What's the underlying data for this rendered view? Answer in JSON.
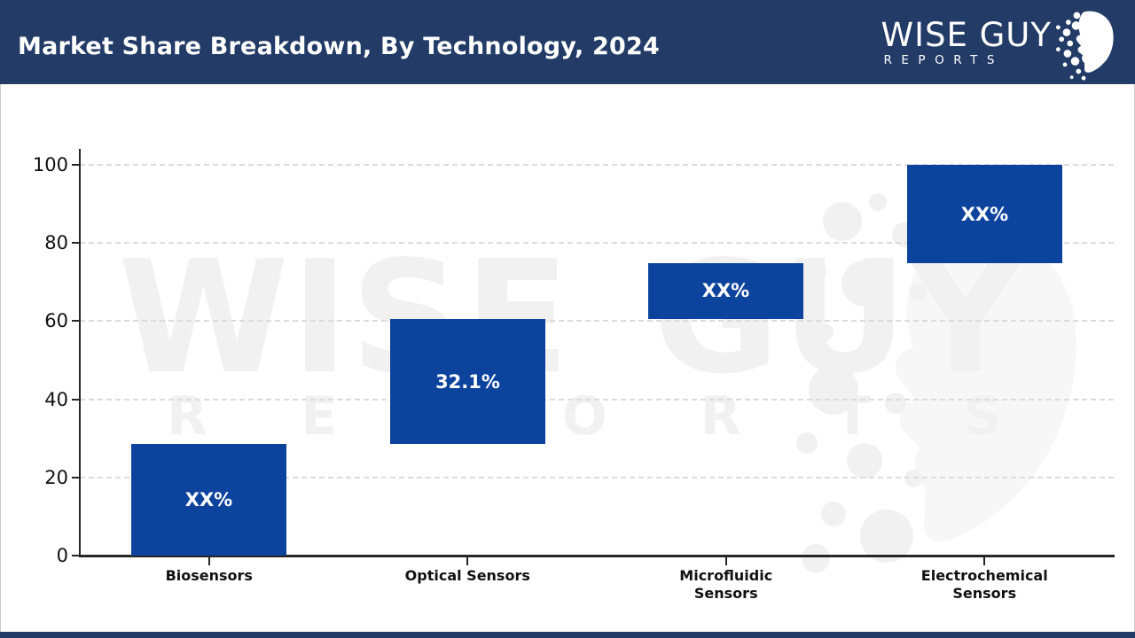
{
  "header": {
    "title": "Market Share Breakdown, By Technology, 2024",
    "logo": {
      "line1": "WISE GUY",
      "line2": "REPORTS"
    },
    "bg_color": "#233b67"
  },
  "watermark": {
    "line1": "WISE GUY",
    "line2": "R E P O R T S",
    "color": "#f1f1f1"
  },
  "chart_data": {
    "type": "bar",
    "subtype": "waterfall-stacked",
    "title": "Market Share Breakdown, By Technology, 2024",
    "xlabel": "",
    "ylabel": "",
    "ylim": [
      0,
      100
    ],
    "yticks": [
      0,
      20,
      40,
      60,
      80,
      100
    ],
    "grid": "horizontal-dashed",
    "legend": "none",
    "bar_color": "#0c439c",
    "bar_label_color": "#ffffff",
    "bars": [
      {
        "category_lines": [
          "Biosensors"
        ],
        "start": 0,
        "end": 28.5,
        "label": "XX%"
      },
      {
        "category_lines": [
          "Optical Sensors"
        ],
        "start": 28.5,
        "end": 60.6,
        "label": "32.1%"
      },
      {
        "category_lines": [
          "Microfluidic",
          "Sensors"
        ],
        "start": 60.6,
        "end": 74.8,
        "label": "XX%"
      },
      {
        "category_lines": [
          "Electrochemical",
          "Sensors"
        ],
        "start": 74.8,
        "end": 100,
        "label": "XX%"
      }
    ]
  }
}
